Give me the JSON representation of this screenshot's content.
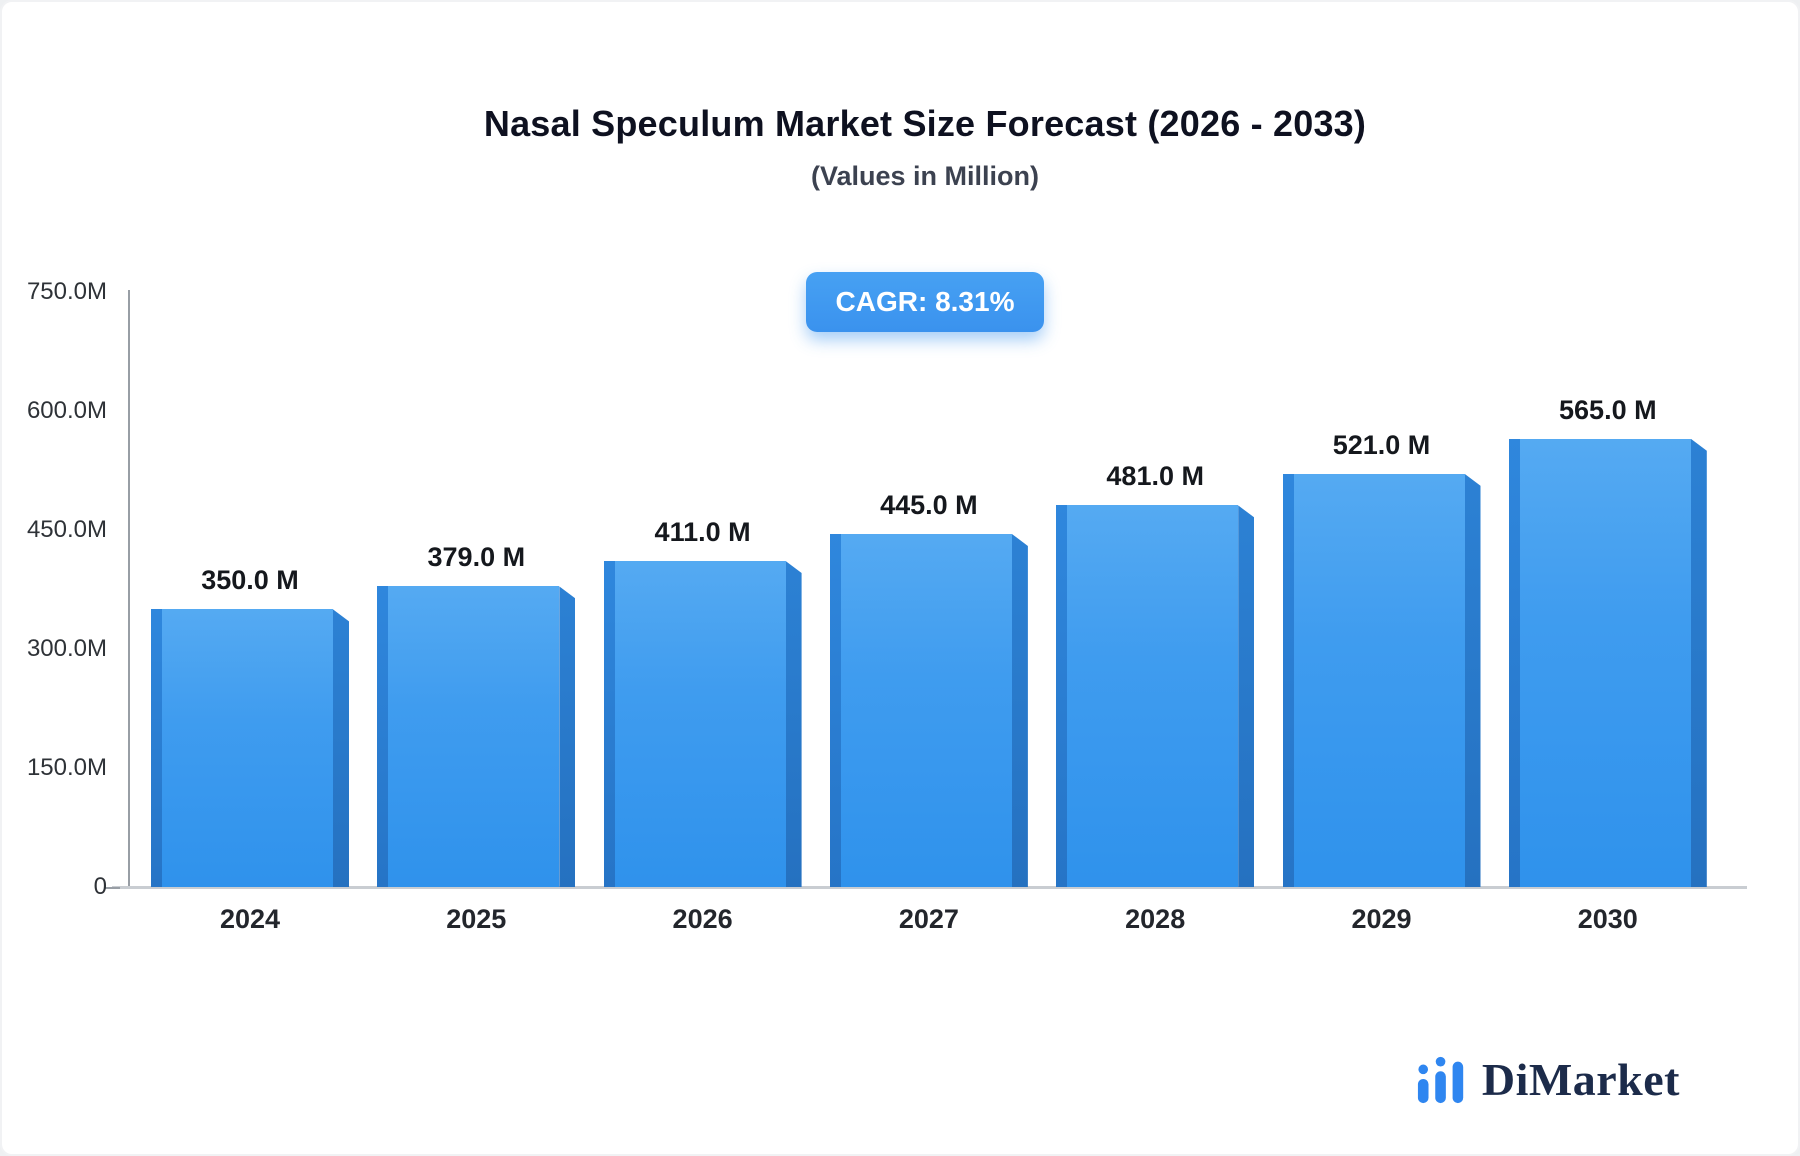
{
  "header": {
    "title": "Nasal Speculum Market Size Forecast (2026 - 2033)",
    "subtitle": "(Values in Million)",
    "cagr_label": "CAGR: 8.31%"
  },
  "chart_data": {
    "type": "bar",
    "title": "Nasal Speculum Market Size Forecast (2026 - 2033)",
    "subtitle": "(Values in Million)",
    "categories": [
      "2024",
      "2025",
      "2026",
      "2027",
      "2028",
      "2029",
      "2030"
    ],
    "values": [
      350,
      379,
      411,
      445,
      481,
      521,
      565
    ],
    "value_labels": [
      "350.0 M",
      "379.0 M",
      "411.0 M",
      "445.0 M",
      "481.0 M",
      "521.0 M",
      "565.0 M"
    ],
    "unit": "Million",
    "cagr": "8.31%",
    "xlabel": "",
    "ylabel": "",
    "ylim": [
      0,
      750
    ],
    "y_ticks": [
      750,
      600,
      450,
      300,
      150,
      0
    ],
    "y_tick_labels": [
      "750.0M",
      "600.0M",
      "450.0M",
      "300.0M",
      "150.0M",
      "0"
    ],
    "grid": false,
    "legend_position": "none",
    "colors": {
      "bar_face": "#3F9CEF",
      "bar_side": "#2A7CCB",
      "badge": "#3A92EE",
      "axis": "#989EA5",
      "baseline": "#C9CDD2",
      "logo_navy": "#1C2B4A",
      "logo_blue": "#2F86F0"
    }
  },
  "branding": {
    "logo_text": "DiMarket",
    "logo_icon": "bar-chart-icon"
  }
}
